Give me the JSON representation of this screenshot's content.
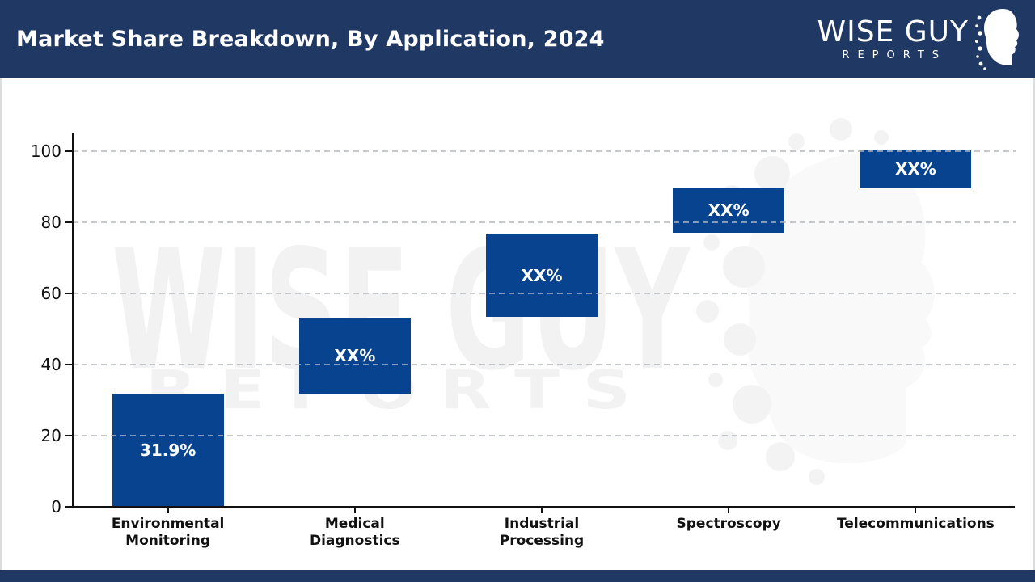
{
  "header": {
    "title": "Market Share Breakdown, By Application, 2024",
    "logo": {
      "line1": "WISE GUY",
      "line2": "REPORTS"
    }
  },
  "watermark": {
    "line1": "WISE GUY",
    "line2": "R E P O R T S"
  },
  "chart_data": {
    "type": "bar",
    "subtype": "waterfall",
    "title": "Market Share Breakdown, By Application, 2024",
    "categories": [
      "Environmental Monitoring",
      "Medical Diagnostics",
      "Industrial Processing",
      "Spectroscopy",
      "Telecommunications"
    ],
    "category_lines": [
      [
        "Environmental",
        "Monitoring"
      ],
      [
        "Medical",
        "Diagnostics"
      ],
      [
        "Industrial",
        "Processing"
      ],
      [
        "Spectroscopy"
      ],
      [
        "Telecommunications"
      ]
    ],
    "segments": [
      {
        "category": "Environmental Monitoring",
        "start": 0,
        "end": 31.9,
        "label": "31.9%"
      },
      {
        "category": "Medical Diagnostics",
        "start": 31.9,
        "end": 53.2,
        "label": "XX%"
      },
      {
        "category": "Industrial Processing",
        "start": 53.4,
        "end": 76.6,
        "label": "XX%"
      },
      {
        "category": "Spectroscopy",
        "start": 77.0,
        "end": 89.6,
        "label": "XX%"
      },
      {
        "category": "Telecommunications",
        "start": 89.6,
        "end": 100.3,
        "label": "XX%"
      }
    ],
    "xlabel": "",
    "ylabel": "",
    "y_ticks": [
      0,
      20,
      40,
      60,
      80,
      100
    ],
    "ylim": [
      0,
      105
    ],
    "grid": "horizontal-dashed",
    "legend": "none"
  },
  "colors": {
    "header_bg": "#1f3864",
    "footer_bg": "#1f3864",
    "bar": "#084390",
    "bar_label": "#ffffff",
    "axis": "#111111",
    "watermark": "#f2f2f2"
  }
}
